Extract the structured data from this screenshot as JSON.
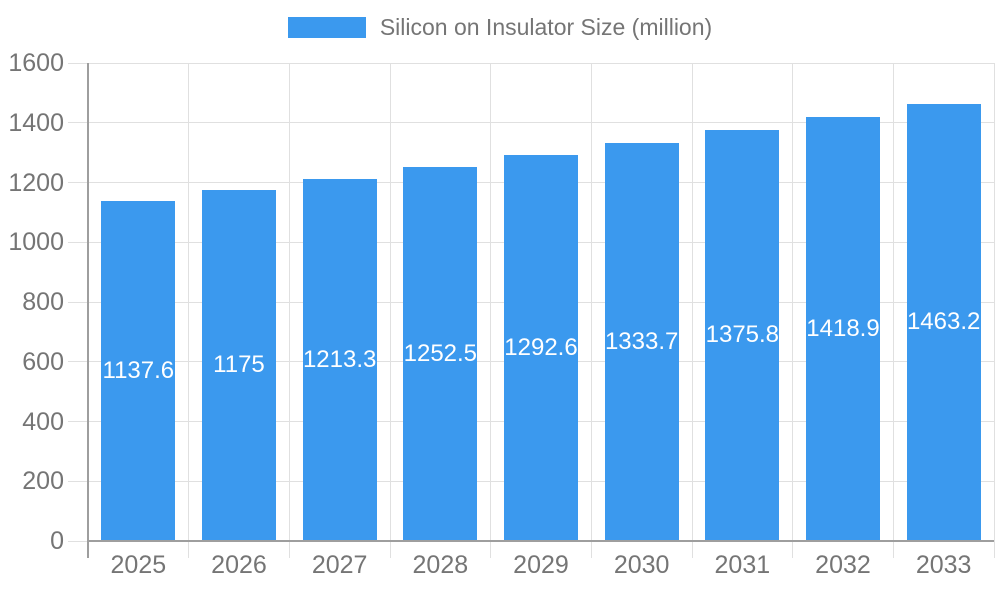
{
  "legend": {
    "label": "Silicon on Insulator Size (million)"
  },
  "chart_data": {
    "type": "bar",
    "title": "Silicon on Insulator Size (million)",
    "categories": [
      "2025",
      "2026",
      "2027",
      "2028",
      "2029",
      "2030",
      "2031",
      "2032",
      "2033"
    ],
    "values": [
      1137.6,
      1175,
      1213.3,
      1252.5,
      1292.6,
      1333.7,
      1375.8,
      1418.9,
      1463.2
    ],
    "bar_labels": [
      "1137.6",
      "1175",
      "1213.3",
      "1252.5",
      "1292.6",
      "1333.7",
      "1375.8",
      "1418.9",
      "1463.2"
    ],
    "xlabel": "",
    "ylabel": "",
    "ylim": [
      0,
      1600
    ],
    "ytick_step": 200,
    "yticks": [
      "0",
      "200",
      "400",
      "600",
      "800",
      "1000",
      "1200",
      "1400",
      "1600"
    ],
    "grid": true,
    "legend_position": "top-center",
    "series_name": "Silicon on Insulator Size (million)"
  },
  "colors": {
    "bar": "#3B99EE",
    "bar_label": "#FFFFFF",
    "axis_text": "#757575",
    "legend_text": "#757575",
    "gridline": "#E0E0E0",
    "axis_line": "#9E9E9E",
    "background": "#FFFFFF"
  }
}
